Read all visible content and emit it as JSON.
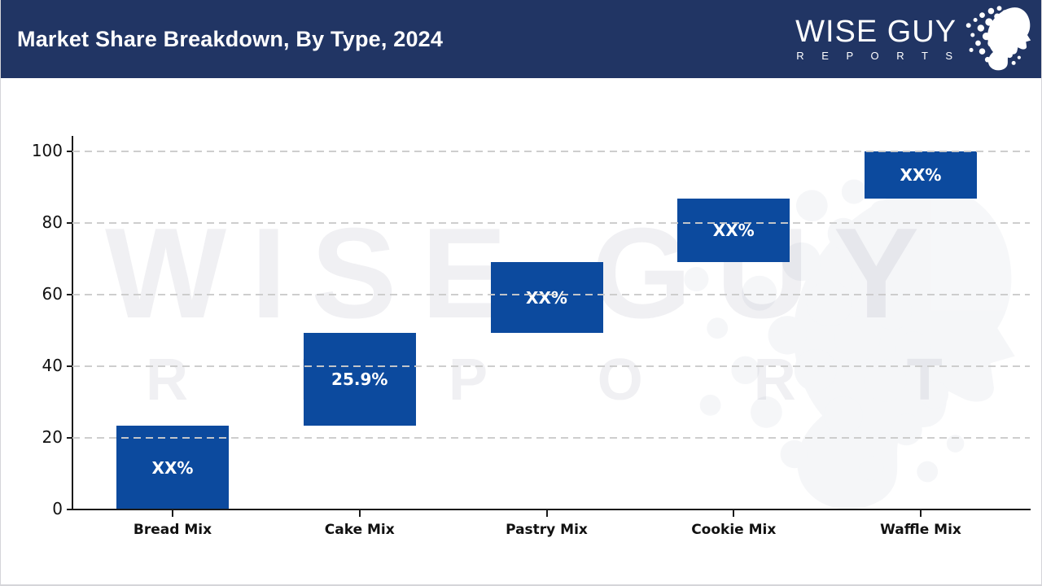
{
  "header": {
    "title": "Market Share Breakdown, By Type, 2024",
    "brand": {
      "name": "WISE GUY",
      "tagline": "R E P O R T S",
      "icon": "dotted-head-profile-icon"
    },
    "bg_color": "#213564"
  },
  "watermark": {
    "line1": "WISE GUY",
    "line2": "R E P O R T S"
  },
  "chart_data": {
    "type": "bar",
    "subtype": "waterfall-floating-bars",
    "title": "Market Share Breakdown, By Type, 2024",
    "categories": [
      "Bread Mix",
      "Cake Mix",
      "Pastry Mix",
      "Cookie Mix",
      "Waffle Mix"
    ],
    "segments": [
      {
        "category": "Bread Mix",
        "start": 0,
        "end": 23.4,
        "value": 23.4,
        "value_label": "XX%"
      },
      {
        "category": "Cake Mix",
        "start": 23.4,
        "end": 49.3,
        "value": 25.9,
        "value_label": "25.9%"
      },
      {
        "category": "Pastry Mix",
        "start": 49.3,
        "end": 69.1,
        "value": 19.8,
        "value_label": "XX%"
      },
      {
        "category": "Cookie Mix",
        "start": 69.1,
        "end": 86.9,
        "value": 17.8,
        "value_label": "XX%"
      },
      {
        "category": "Waffle Mix",
        "start": 86.9,
        "end": 100,
        "value": 13.1,
        "value_label": "XX%"
      }
    ],
    "ylim": [
      0,
      100
    ],
    "yticks": [
      0,
      20,
      40,
      60,
      80,
      100
    ],
    "xlabel": "",
    "ylabel": "",
    "grid": "horizontal-dashed",
    "legend": "none",
    "bar_color": "#0c4a9e",
    "bar_label_color": "#ffffff"
  },
  "colors": {
    "header_bg": "#213564",
    "accent_blue": "#0c4a9e",
    "grid_gray": "#cbcbcb"
  }
}
